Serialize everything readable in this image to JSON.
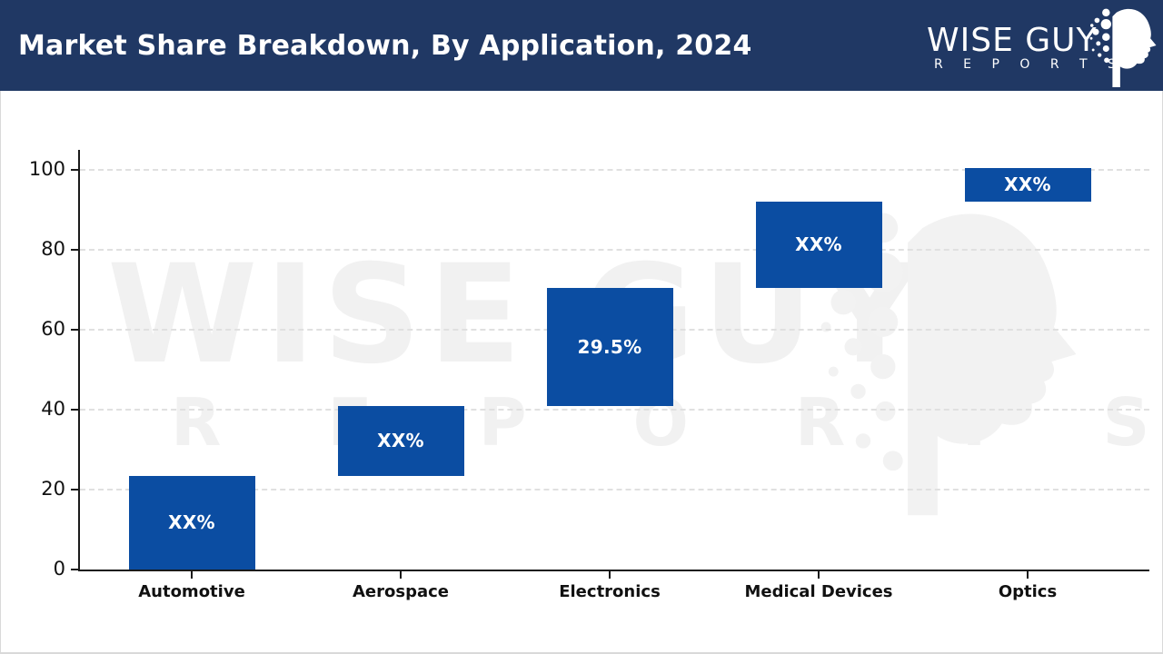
{
  "header": {
    "title": "Market Share Breakdown, By Application, 2024",
    "bg_color": "#203864",
    "text_color": "#ffffff",
    "logo": {
      "wordmark": "WISE GUY",
      "subtext": "R E P O R T S"
    }
  },
  "watermark": {
    "line1": "WISE GUY",
    "line2": "R E P O R T S",
    "color": "#f1f1f1"
  },
  "chart_data": {
    "type": "bar",
    "variant": "waterfall",
    "title": "Market Share Breakdown, By Application, 2024",
    "categories": [
      "Automotive",
      "Aerospace",
      "Electronics",
      "Medical Devices",
      "Optics"
    ],
    "segments": [
      {
        "category": "Automotive",
        "start": 0,
        "end": 23.5,
        "label": "XX%"
      },
      {
        "category": "Aerospace",
        "start": 23.5,
        "end": 41,
        "label": "XX%"
      },
      {
        "category": "Electronics",
        "start": 41,
        "end": 70.5,
        "label": "29.5%"
      },
      {
        "category": "Medical Devices",
        "start": 70.5,
        "end": 92,
        "label": "XX%"
      },
      {
        "category": "Optics",
        "start": 92,
        "end": 100.5,
        "label": "XX%"
      }
    ],
    "xlabel": "",
    "ylabel": "",
    "yticks": [
      0,
      20,
      40,
      60,
      80,
      100
    ],
    "ylim": [
      0,
      105
    ],
    "bar_color": "#0b4da2",
    "bar_label_color": "#ffffff",
    "axis_color": "#1a1a1a",
    "grid": {
      "horizontal": true,
      "style": "dashed",
      "color": "#e0e0e0"
    },
    "legend": "none"
  }
}
